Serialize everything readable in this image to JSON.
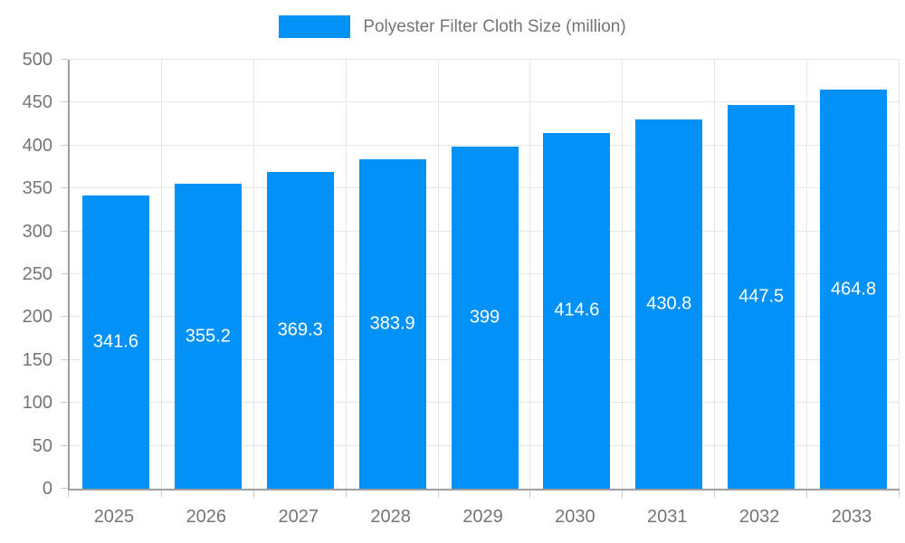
{
  "chart_data": {
    "type": "bar",
    "title": "Polyester Filter Cloth Size (million)",
    "categories": [
      "2025",
      "2026",
      "2027",
      "2028",
      "2029",
      "2030",
      "2031",
      "2032",
      "2033"
    ],
    "values": [
      341.6,
      355.2,
      369.3,
      383.9,
      399,
      414.6,
      430.8,
      447.5,
      464.8
    ],
    "series_name": "Polyester Filter Cloth Size (million)",
    "xlabel": "",
    "ylabel": "",
    "ylim": [
      0,
      500
    ],
    "ytick_step": 50,
    "ytick_labels": [
      "0",
      "50",
      "100",
      "150",
      "200",
      "250",
      "300",
      "350",
      "400",
      "450",
      "500"
    ],
    "grid": true,
    "legend_position": "top-center",
    "bar_labels_inside": true
  },
  "legend": {
    "label": "Polyester Filter Cloth Size (million)"
  },
  "colors": {
    "background": "#ffffff",
    "bar": "#0191f7",
    "bar_label_text": "#ffffff",
    "grid_line": "#e6e6e6",
    "axis_line": "#9e9e9e",
    "tick_mark": "#cccccc",
    "axis_text": "#757575",
    "legend_text": "#757575"
  }
}
